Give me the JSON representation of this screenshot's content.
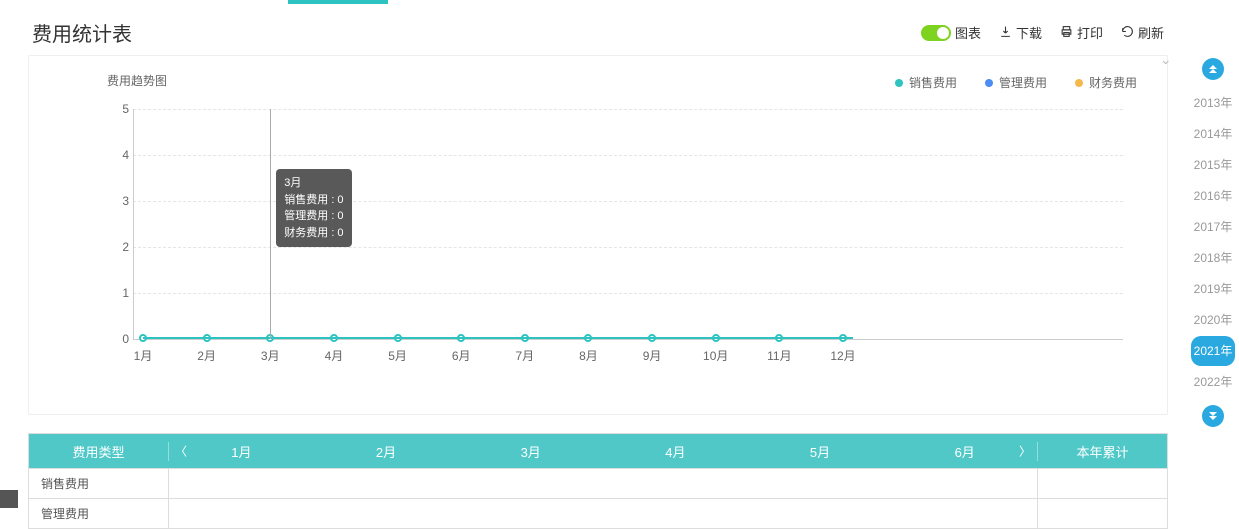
{
  "accent_color": "#2dc3c1",
  "header": {
    "title": "费用统计表",
    "toggle_label": "图表",
    "download_label": "下载",
    "print_label": "打印",
    "refresh_label": "刷新",
    "toggle_on_color": "#7ed321"
  },
  "chart": {
    "title": "费用趋势图",
    "legend": [
      {
        "label": "销售费用",
        "color": "#2dc3c1"
      },
      {
        "label": "管理费用",
        "color": "#4c8cf5"
      },
      {
        "label": "财务费用",
        "color": "#f5b84c"
      }
    ],
    "y_ticks": [
      0,
      1,
      2,
      3,
      4,
      5
    ],
    "ylim": [
      0,
      5
    ],
    "x_categories": [
      "1月",
      "2月",
      "3月",
      "4月",
      "5月",
      "6月",
      "7月",
      "8月",
      "9月",
      "10月",
      "11月",
      "12月"
    ],
    "series": {
      "销售费用": [
        0,
        0,
        0,
        0,
        0,
        0,
        0,
        0,
        0,
        0,
        0,
        0
      ],
      "管理费用": [
        0,
        0,
        0,
        0,
        0,
        0,
        0,
        0,
        0,
        0,
        0,
        0
      ],
      "财务费用": [
        0,
        0,
        0,
        0,
        0,
        0,
        0,
        0,
        0,
        0,
        0,
        0
      ]
    },
    "hover_index": 2,
    "tooltip": {
      "title": "3月",
      "lines": [
        {
          "label": "销售费用",
          "value": "0"
        },
        {
          "label": "管理费用",
          "value": "0"
        },
        {
          "label": "财务费用",
          "value": "0"
        }
      ],
      "bg": "rgba(60,60,60,0.85)"
    },
    "baseline_color": "#cccccc",
    "grid_color": "#e5e5e5",
    "series_line_color": "#2dc3c1"
  },
  "table": {
    "header_bg": "#50c8c8",
    "type_header": "费用类型",
    "month_headers": [
      "1月",
      "2月",
      "3月",
      "4月",
      "5月",
      "6月"
    ],
    "total_header": "本年累计",
    "rows": [
      {
        "type": "销售费用",
        "cells": [
          "",
          "",
          "",
          "",
          "",
          ""
        ],
        "total": ""
      },
      {
        "type": "管理费用",
        "cells": [
          "",
          "",
          "",
          "",
          "",
          ""
        ],
        "total": ""
      }
    ]
  },
  "year_rail": {
    "years": [
      "2013年",
      "2014年",
      "2015年",
      "2016年",
      "2017年",
      "2018年",
      "2019年",
      "2020年",
      "2021年",
      "2022年"
    ],
    "active": "2021年",
    "btn_bg": "#2aa9e0"
  }
}
